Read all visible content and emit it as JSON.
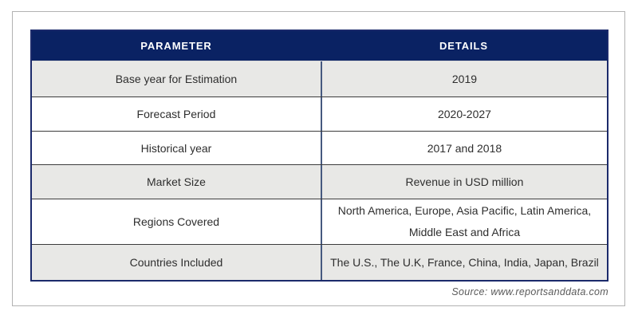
{
  "colors": {
    "header_bg": "#0a2263",
    "table_border": "#1b2a6b",
    "column_divider": "#46597f",
    "shaded_row_bg": "#e8e8e6",
    "body_text": "#2e2e2e",
    "source_text": "#5a5a5a"
  },
  "table": {
    "header": {
      "parameter": "PARAMETER",
      "details": "DETAILS"
    },
    "rows": [
      {
        "parameter": "Base year for Estimation",
        "details": "2019",
        "shaded": true
      },
      {
        "parameter": "Forecast Period",
        "details": "2020-2027",
        "shaded": false
      },
      {
        "parameter": "Historical year",
        "details": "2017 and 2018",
        "shaded": false
      },
      {
        "parameter": "Market Size",
        "details": "Revenue in USD million",
        "shaded": true
      },
      {
        "parameter": "Regions Covered",
        "details": "North America, Europe, Asia Pacific, Latin America,\nMiddle East and Africa",
        "shaded": false
      },
      {
        "parameter": "Countries Included",
        "details": "The U.S., The  U.K, France, China, India, Japan, Brazil",
        "shaded": true
      }
    ]
  },
  "footer": {
    "source": "Source: www.reportsanddata.com"
  }
}
